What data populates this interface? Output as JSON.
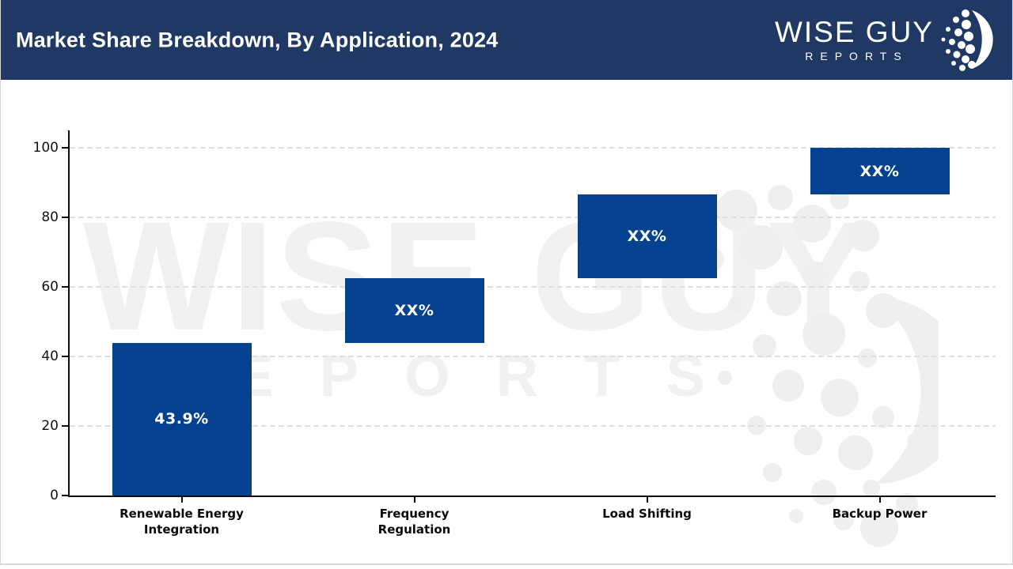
{
  "header": {
    "title": "Market Share Breakdown, By Application, 2024",
    "bg_color": "#1f3864",
    "logo": {
      "brand": "WISE GUY",
      "sub": "REPORTS"
    }
  },
  "watermark": {
    "line1": "WISE GUY",
    "line2": "REPORTS"
  },
  "chart_data": {
    "type": "bar",
    "subtype": "waterfall",
    "title": "Market Share Breakdown, By Application, 2024",
    "categories": [
      "Renewable Energy Integration",
      "Frequency Regulation",
      "Load Shifting",
      "Backup Power"
    ],
    "category_lines": [
      [
        "Renewable Energy",
        "Integration"
      ],
      [
        "Frequency",
        "Regulation"
      ],
      [
        "Load Shifting"
      ],
      [
        "Backup Power"
      ]
    ],
    "segments": [
      {
        "category": "Renewable Energy Integration",
        "start": 0,
        "end": 43.9,
        "label": "43.9%"
      },
      {
        "category": "Frequency Regulation",
        "start": 43.9,
        "end": 62.5,
        "label": "XX%"
      },
      {
        "category": "Load Shifting",
        "start": 62.5,
        "end": 86.5,
        "label": "XX%"
      },
      {
        "category": "Backup Power",
        "start": 86.5,
        "end": 100,
        "label": "XX%"
      }
    ],
    "yticks": [
      0,
      20,
      40,
      60,
      80,
      100
    ],
    "ylim": [
      0,
      105
    ],
    "xlabel": "",
    "ylabel": "",
    "grid": "horizontal dashed",
    "legend": "none",
    "bar_color": "#04418f",
    "bar_label_color": "#ffffff"
  }
}
